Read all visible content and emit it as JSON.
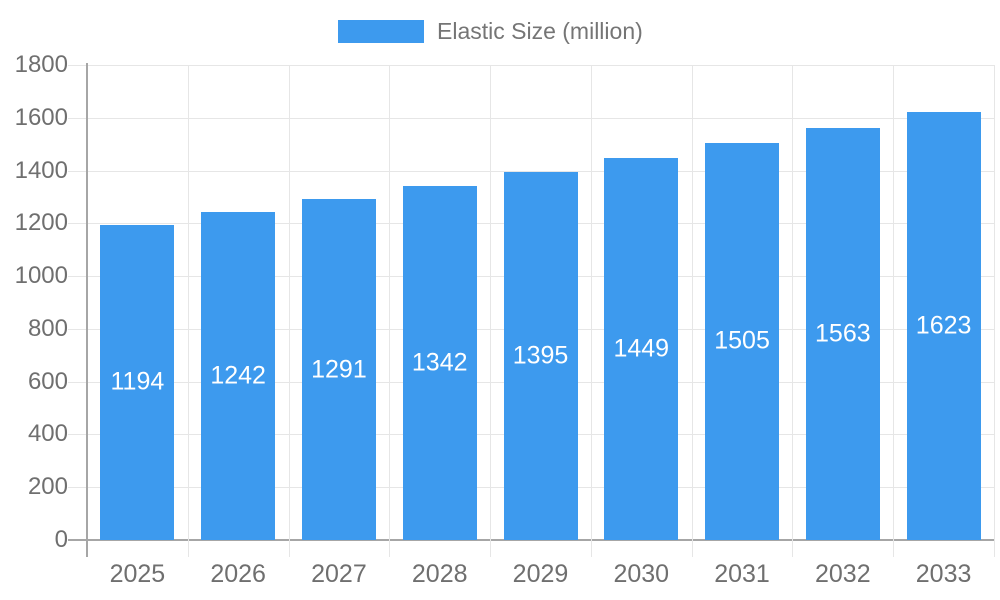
{
  "chart_data": {
    "type": "bar",
    "title": "",
    "legend": {
      "label": "Elastic Size (million)",
      "position": "top-center"
    },
    "categories": [
      "2025",
      "2026",
      "2027",
      "2028",
      "2029",
      "2030",
      "2031",
      "2032",
      "2033"
    ],
    "series": [
      {
        "name": "Elastic Size (million)",
        "values": [
          1194,
          1242,
          1291,
          1342,
          1395,
          1449,
          1505,
          1563,
          1623
        ]
      }
    ],
    "value_labels_shown": true,
    "xlabel": "",
    "ylabel": "",
    "ylim": [
      0,
      1800
    ],
    "ytick_step": 200,
    "yticks": [
      0,
      200,
      400,
      600,
      800,
      1000,
      1200,
      1400,
      1600,
      1800
    ],
    "grid": true,
    "colors": {
      "bar": "#3D9AEE",
      "value_label": "#FFFFFF",
      "axis_label": "#6F6F6F",
      "legend_label": "#757575",
      "gridline": "#E6E6E6",
      "axis_line": "#A6A6A6",
      "background": "#FFFFFF"
    }
  }
}
